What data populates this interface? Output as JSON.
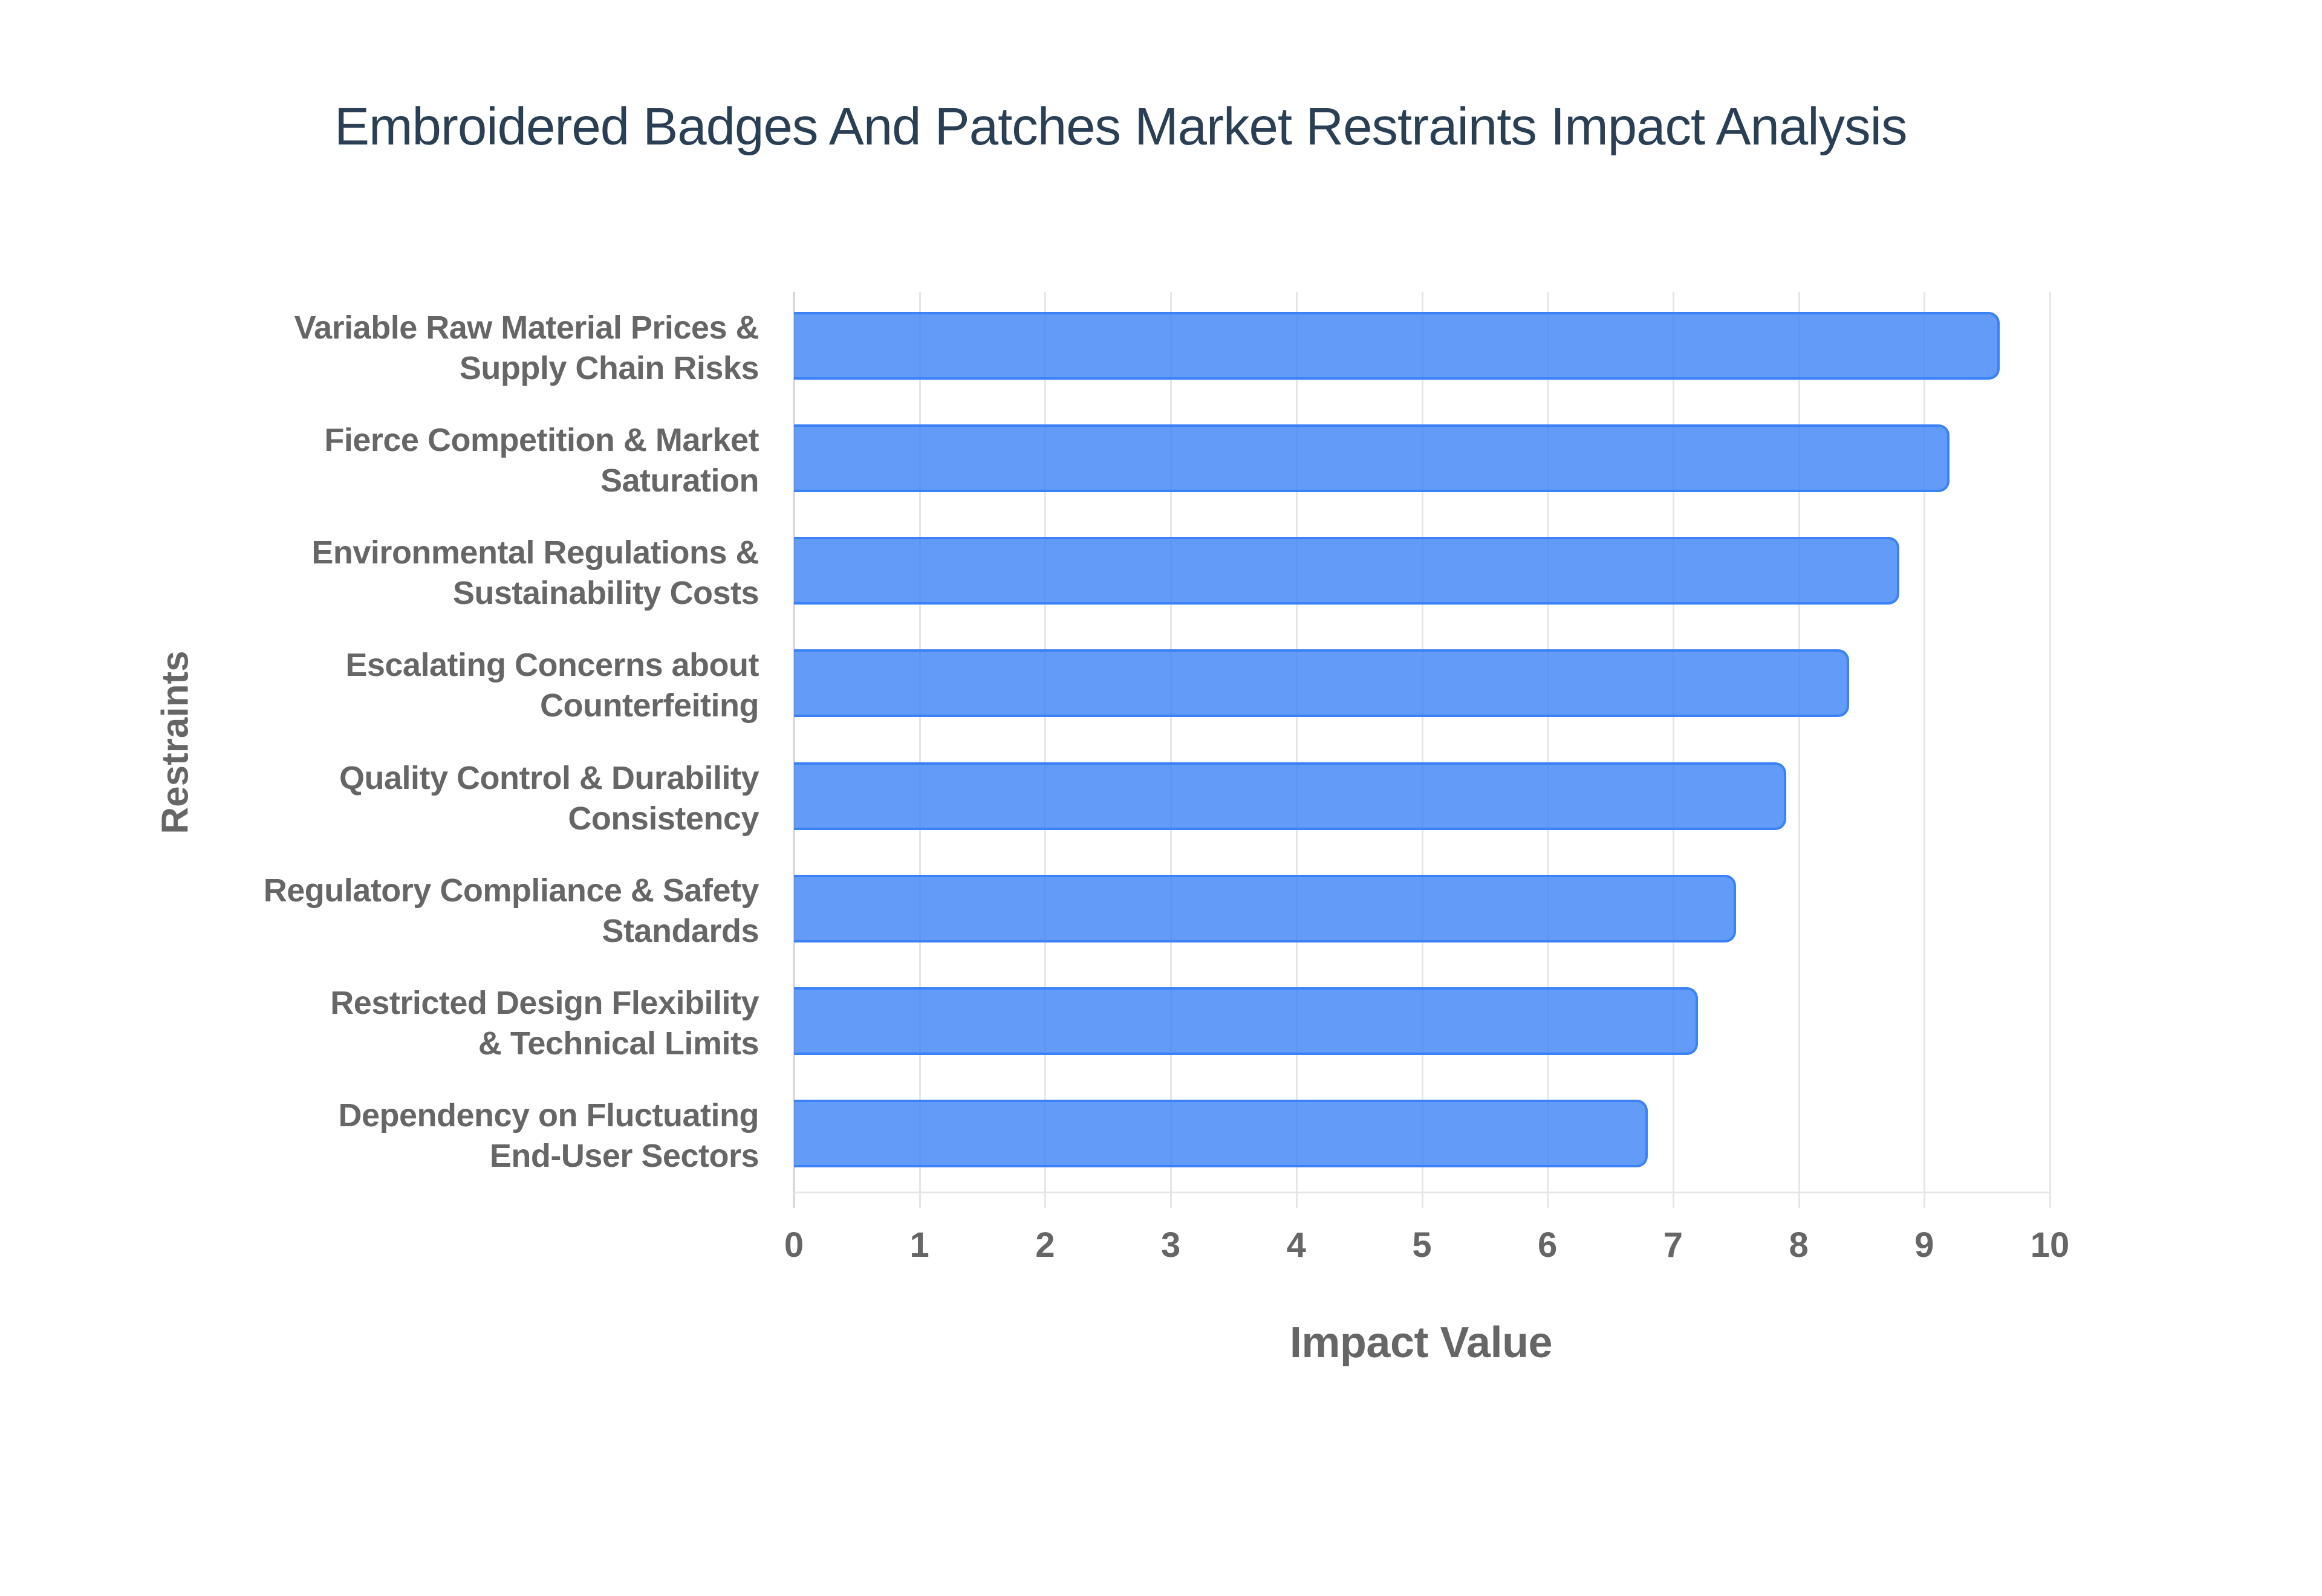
{
  "chart": {
    "title": "Embroidered Badges And Patches Market Restraints Impact Analysis",
    "xlabel": "Impact Value",
    "ylabel": "Restraints",
    "x_ticks": [
      "0",
      "1",
      "2",
      "3",
      "4",
      "5",
      "6",
      "7",
      "8",
      "9",
      "10"
    ],
    "bar_color": "#3b82f6",
    "bar_fill": "rgba(59,130,246,0.8)",
    "categories": [
      "Variable Raw Material Prices &\nSupply Chain Risks",
      "Fierce Competition & Market\nSaturation",
      "Environmental Regulations &\nSustainability Costs",
      "Escalating Concerns about\nCounterfeiting",
      "Quality Control & Durability\nConsistency",
      "Regulatory Compliance & Safety\nStandards",
      "Restricted Design Flexibility\n& Technical Limits",
      "Dependency on Fluctuating\nEnd-User Sectors"
    ],
    "values": [
      9.6,
      9.2,
      8.8,
      8.4,
      7.9,
      7.5,
      7.2,
      6.8
    ]
  },
  "chart_data": {
    "type": "bar",
    "orientation": "horizontal",
    "title": "Embroidered Badges And Patches Market Restraints Impact Analysis",
    "xlabel": "Impact Value",
    "ylabel": "Restraints",
    "categories": [
      "Variable Raw Material Prices & Supply Chain Risks",
      "Fierce Competition & Market Saturation",
      "Environmental Regulations & Sustainability Costs",
      "Escalating Concerns about Counterfeiting",
      "Quality Control & Durability Consistency",
      "Regulatory Compliance & Safety Standards",
      "Restricted Design Flexibility & Technical Limits",
      "Dependency on Fluctuating End-User Sectors"
    ],
    "values": [
      9.6,
      9.2,
      8.8,
      8.4,
      7.9,
      7.5,
      7.2,
      6.8
    ],
    "xlim": [
      0,
      10
    ],
    "x_ticks": [
      0,
      1,
      2,
      3,
      4,
      5,
      6,
      7,
      8,
      9,
      10
    ],
    "grid": true,
    "legend": null,
    "color": "#3b82f6"
  }
}
